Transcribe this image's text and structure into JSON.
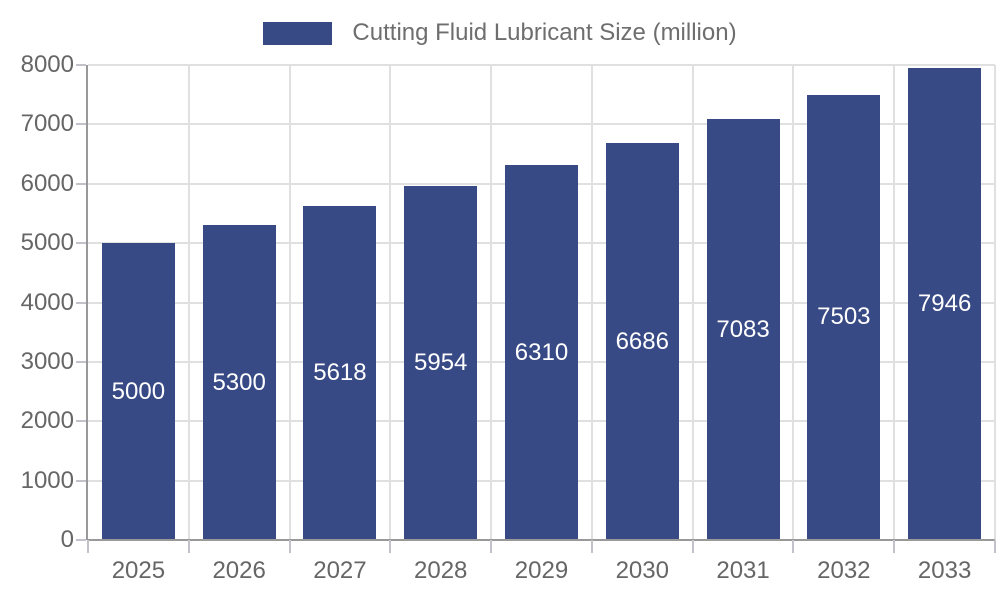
{
  "chart_data": {
    "type": "bar",
    "title": "Cutting Fluid Lubricant Size (million)",
    "categories": [
      "2025",
      "2026",
      "2027",
      "2028",
      "2029",
      "2030",
      "2031",
      "2032",
      "2033"
    ],
    "values": [
      5000,
      5300,
      5618,
      5954,
      6310,
      6686,
      7083,
      7503,
      7946
    ],
    "yticks": [
      "0",
      "1000",
      "2000",
      "3000",
      "4000",
      "5000",
      "6000",
      "7000",
      "8000"
    ],
    "ylim": [
      0,
      8000
    ],
    "ytick_step": 1000,
    "xlabel": "",
    "ylabel": "",
    "grid": true,
    "legend_position": "top-center",
    "value_labels": "inside-center",
    "colors": {
      "bar": "#384a85",
      "grid": "#e0e0e0",
      "axis": "#999999",
      "tick": "#c2c2ca",
      "tick_text": "#666666",
      "title_text": "#6e6e6e",
      "value_label": "#ffffff",
      "background": "#ffffff"
    }
  }
}
